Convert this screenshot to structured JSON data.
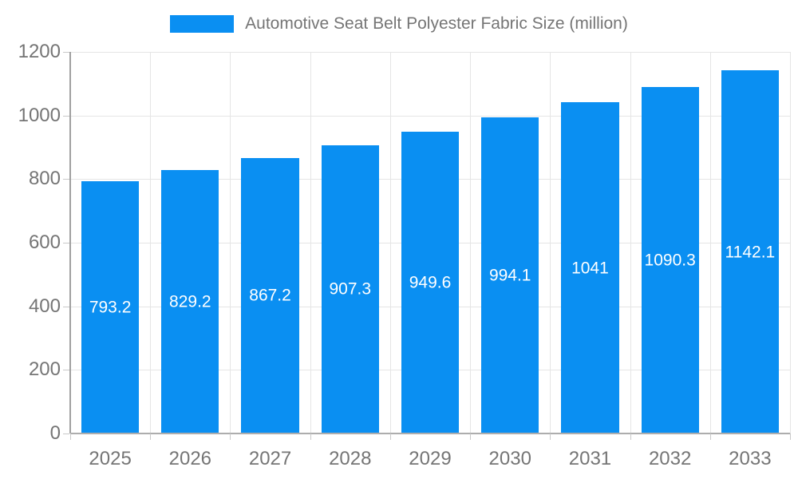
{
  "chart_data": {
    "type": "bar",
    "title": "Automotive Seat Belt Polyester Fabric Size (million)",
    "legend": {
      "label": "Automotive Seat Belt Polyester Fabric Size (million)",
      "position": "top-center"
    },
    "categories": [
      "2025",
      "2026",
      "2027",
      "2028",
      "2029",
      "2030",
      "2031",
      "2032",
      "2033"
    ],
    "values": [
      793.2,
      829.2,
      867.2,
      907.3,
      949.6,
      994.1,
      1041,
      1090.3,
      1142.1
    ],
    "value_labels": [
      "793.2",
      "829.2",
      "867.2",
      "907.3",
      "949.6",
      "994.1",
      "1041",
      "1090.3",
      "1142.1"
    ],
    "xlabel": "",
    "ylabel": "",
    "ylim": [
      0,
      1200
    ],
    "y_ticks": [
      0,
      200,
      400,
      600,
      800,
      1000,
      1200
    ],
    "grid": true,
    "value_label_position": "inside-center",
    "colors": {
      "bar": "#0a8ff2",
      "value_label": "#ffffff",
      "axis_text": "#757575",
      "grid_line": "#e5e5e5",
      "axis_line": "#a8a8a8",
      "background": "#ffffff"
    }
  }
}
